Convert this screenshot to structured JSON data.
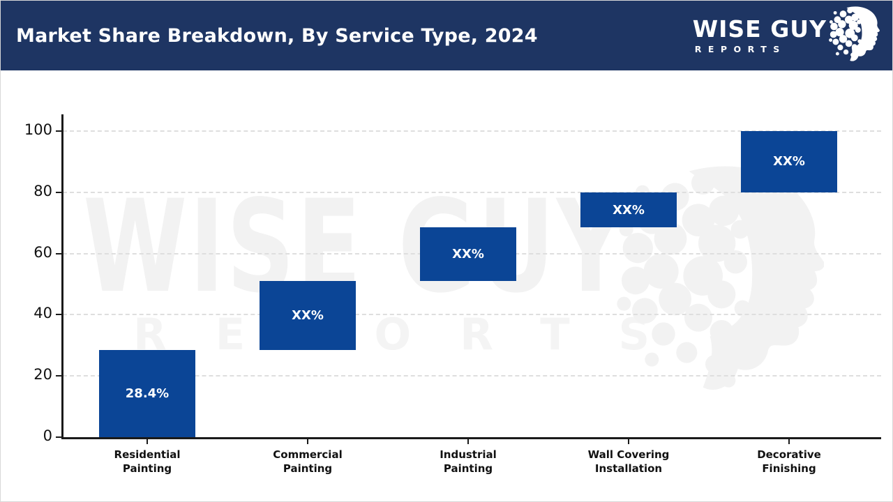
{
  "header": {
    "title": "Market Share Breakdown, By Service Type, 2024",
    "logo": {
      "line1": "WISE GUY",
      "line2": "REPORTS"
    }
  },
  "watermark": {
    "line1": "WISE GUY",
    "line2": "REPORTS"
  },
  "chart_data": {
    "type": "bar",
    "subtype": "waterfall",
    "title": "Market Share Breakdown, By Service Type, 2024",
    "categories": [
      [
        "Residential",
        "Painting"
      ],
      [
        "Commercial",
        "Painting"
      ],
      [
        "Industrial",
        "Painting"
      ],
      [
        "Wall Covering",
        "Installation"
      ],
      [
        "Decorative",
        "Finishing"
      ]
    ],
    "segments": [
      {
        "start": 0,
        "end": 28.4,
        "label": "28.4%"
      },
      {
        "start": 28.4,
        "end": 51,
        "label": "XX%"
      },
      {
        "start": 51,
        "end": 68.5,
        "label": "XX%"
      },
      {
        "start": 68.5,
        "end": 80,
        "label": "XX%"
      },
      {
        "start": 80,
        "end": 100,
        "label": "XX%"
      }
    ],
    "yticks": [
      0,
      20,
      40,
      60,
      80,
      100
    ],
    "ylim": [
      0,
      105
    ],
    "xlabel": "",
    "ylabel": "",
    "grid": "horizontal-dashed",
    "legend": "none",
    "colors": {
      "bar": "#0b4596",
      "header": "#1e3563",
      "grid": "#dedede",
      "axis": "#1a1a1a",
      "bar_label": "#ffffff",
      "tick_label": "#111111"
    }
  }
}
